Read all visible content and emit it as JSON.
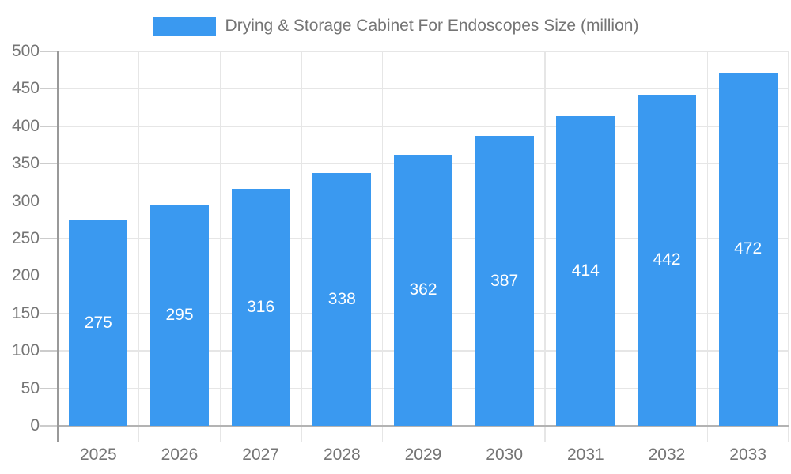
{
  "chart_data": {
    "type": "bar",
    "title": "Drying & Storage Cabinet For Endoscopes Size (million)",
    "categories": [
      "2025",
      "2026",
      "2027",
      "2028",
      "2029",
      "2030",
      "2031",
      "2032",
      "2033"
    ],
    "values": [
      275,
      295,
      316,
      338,
      362,
      387,
      414,
      442,
      472
    ],
    "xlabel": "",
    "ylabel": "",
    "ylim": [
      0,
      500
    ],
    "ytick_step": 50,
    "yticks": [
      0,
      50,
      100,
      150,
      200,
      250,
      300,
      350,
      400,
      450,
      500
    ],
    "grid": true,
    "legend_position": "top-center",
    "bar_labels_inside": true,
    "colors": {
      "bar": "#3A99F0",
      "bar_label_text": "#ffffff",
      "axis_text": "#757575",
      "y_axis_line": "#999999",
      "x_axis_line": "#b3b3b3",
      "gridline": "#e6e6e6",
      "y_tick": "#cccccc",
      "background": "#ffffff"
    }
  }
}
